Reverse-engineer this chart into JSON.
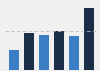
{
  "bars": [
    {
      "value": 100,
      "color": "#3b7ec4"
    },
    {
      "value": 185,
      "color": "#1b2e47"
    },
    {
      "value": 175,
      "color": "#3b7ec4"
    },
    {
      "value": 195,
      "color": "#1b2e47"
    },
    {
      "value": 170,
      "color": "#3b7ec4"
    },
    {
      "value": 310,
      "color": "#1b2e47"
    }
  ],
  "dashed_line_y": 195,
  "background_color": "#f0f0f0",
  "plot_bg": "#ffffff",
  "ylim": [
    0,
    345
  ]
}
